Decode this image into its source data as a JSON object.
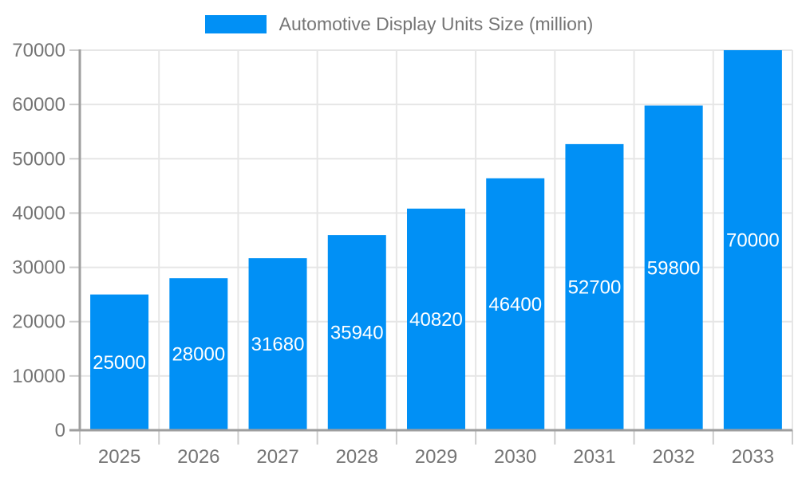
{
  "chart_data": {
    "type": "bar",
    "title": "Automotive Display Units Size (million)",
    "categories": [
      "2025",
      "2026",
      "2027",
      "2028",
      "2029",
      "2030",
      "2031",
      "2032",
      "2033"
    ],
    "series": [
      {
        "name": "Automotive Display Units Size (million)",
        "values": [
          25000,
          28000,
          31680,
          35940,
          40820,
          46400,
          52700,
          59800,
          70000
        ],
        "data_labels": [
          "25000",
          "28000",
          "31680",
          "35940",
          "40820",
          "46400",
          "52700",
          "59800",
          "70000"
        ]
      }
    ],
    "xlabel": "",
    "ylabel": "",
    "ylim": [
      0,
      70000
    ],
    "ytick_step": 10000,
    "ytick_labels": [
      "0",
      "10000",
      "20000",
      "30000",
      "40000",
      "50000",
      "60000",
      "70000"
    ],
    "legend_position": "top",
    "grid": "both",
    "data_label_position": "center-inside",
    "colors": {
      "bar": "#0190f5",
      "tick_label": "#757575",
      "title": "#757575",
      "gridline": "#e6e6e6",
      "tick": "#cccccc",
      "axis": "#9e9e9e",
      "data_label": "#ffffff",
      "background": "#ffffff"
    }
  }
}
